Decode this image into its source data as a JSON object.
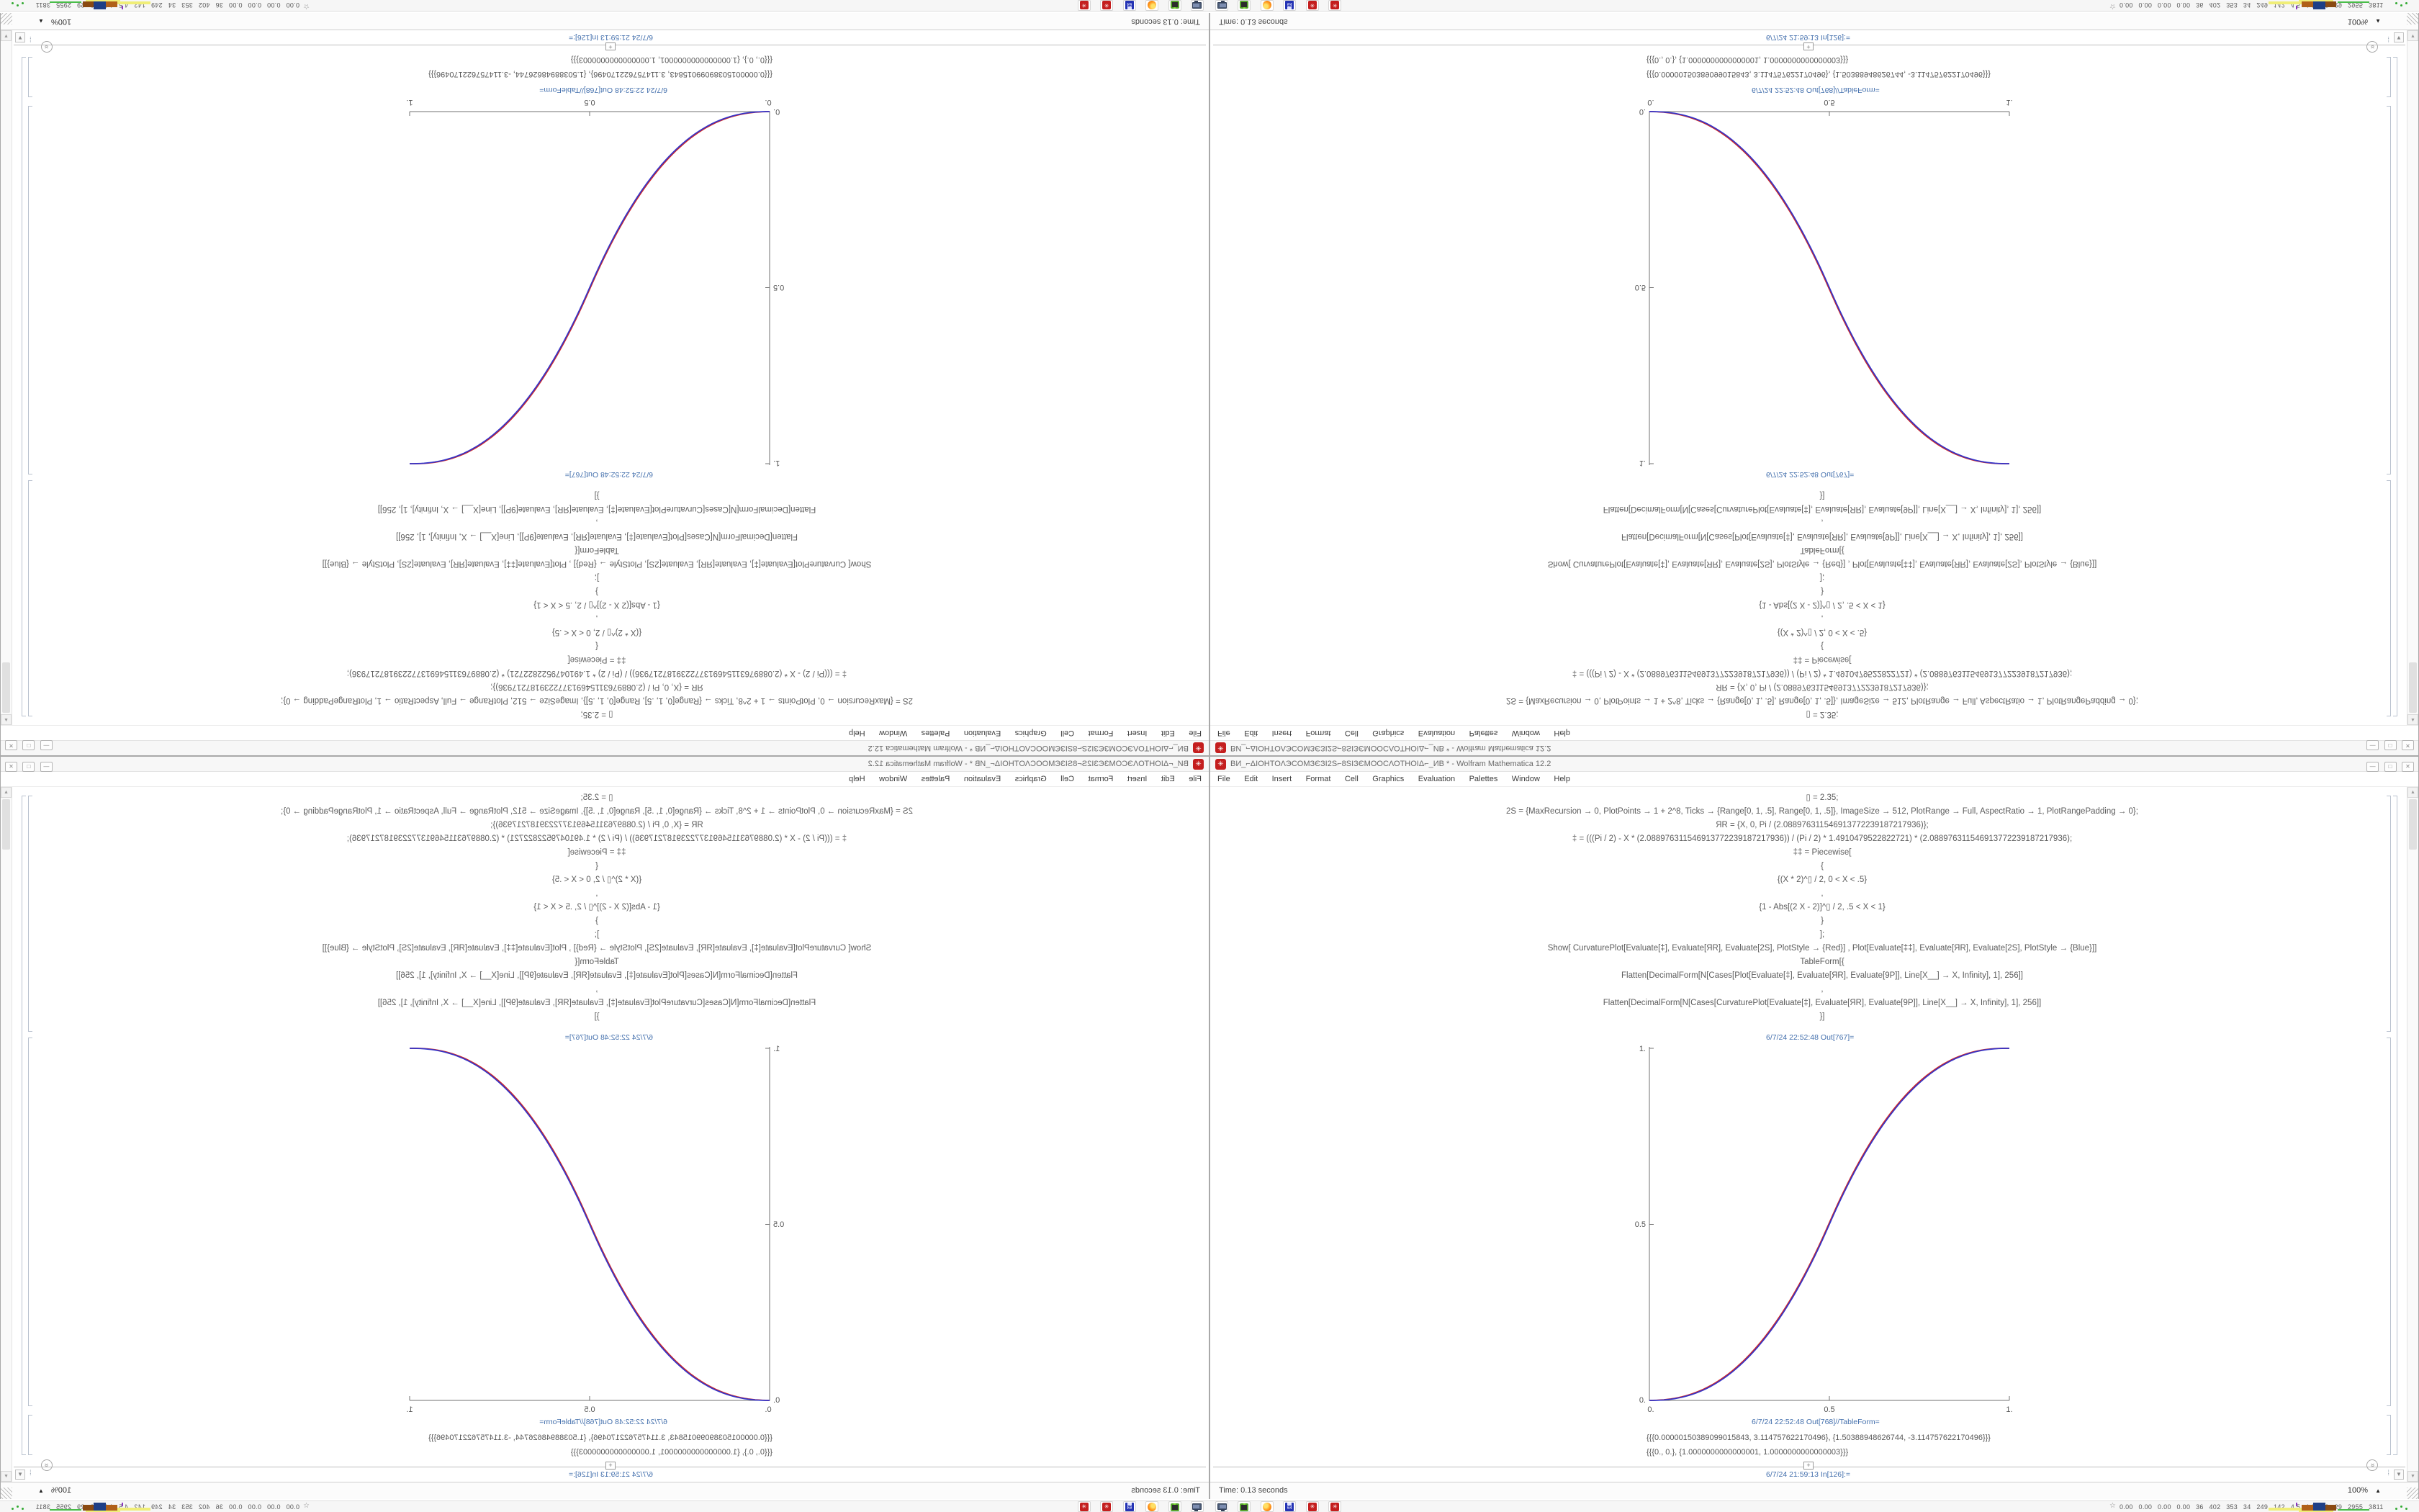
{
  "window": {
    "title": "ВИ_⌐ΔΙΟΗΤΟΛЭСΟΜЗЄЗΙ2Ѕ⌐8ЅΙЗЄΜΟΟСΛΟΤΗΟΙΔ⌐_ИВ * - Wolfram Mathematica 12.2",
    "app_icon_glyph": "✳",
    "buttons": {
      "minimize": "—",
      "maximize": "□",
      "close": "✕"
    },
    "menu": [
      "File",
      "Edit",
      "Insert",
      "Format",
      "Cell",
      "Graphics",
      "Evaluation",
      "Palettes",
      "Window",
      "Help"
    ]
  },
  "notebook": {
    "input_lines": [
      "▯ = 2.35;",
      "2S = {MaxRecursion → 0, PlotPoints → 1 + 2^8, Ticks → {Range[0, 1, .5], Range[0, 1, .5]}, ImageSize → 512, PlotRange → Full, AspectRatio → 1, PlotRangePadding → 0};",
      "ЯR = {X, 0, Pi / (2.088976311546913772239187217936)};",
      "‡ = (((Pi / 2) - X * (2.088976311546913772239187217936)) / (Pi / 2) * 1.4910479522822721) * (2.088976311546913772239187217936);",
      "‡‡ = Piecewise[",
      "{",
      "{(X * 2)^▯ / 2, 0 < X < .5}",
      ",",
      "{1 - Abs[(2 X - 2)]^▯ / 2, .5 < X < 1}",
      "}",
      "];",
      "Show[  CurvaturePlot[Evaluate[‡], Evaluate[ЯR], Evaluate[2S], PlotStyle → {Red}]  ,   Plot[Evaluate[‡‡], Evaluate[ЯR], Evaluate[2S],  PlotStyle → {Blue}]]",
      "TableForm[{",
      "Flatten[DecimalForm[N[Cases[Plot[Evaluate[‡], Evaluate[ЯR], Evaluate[9P]], Line[X__] → X, Infinity], 1], 256]]",
      ",",
      "Flatten[DecimalForm[N[Cases[CurvaturePlot[Evaluate[‡], Evaluate[ЯR], Evaluate[9P]], Line[X__] → X, Infinity], 1], 256]]",
      "}]"
    ],
    "out_plot_label": "6/7/24 22:52:48 Out[767]=",
    "out_table_label": "6/7/24 22:52:48 Out[768]//TableForm=",
    "table_rows": [
      "{{{0.00000150389099015843, 3.114757622170496}, {1.50388948626744, -3.114757622170496}}}",
      "{{{0., 0.}, {1.0000000000000001, 1.0000000000000003}}}"
    ],
    "in_label": "6/7/24 21:59:13 In[126]:=",
    "insert_plus": "+",
    "collapse_glyph": "»",
    "assist_dots": "⁞",
    "assist_drop": "▼"
  },
  "chart_data": {
    "type": "line",
    "title": "",
    "xlabel": "",
    "ylabel": "",
    "xlim": [
      0,
      1
    ],
    "ylim": [
      0,
      1
    ],
    "grid": false,
    "legend": "none (PlotStyle Red = CurvaturePlot[‡], Blue = Plot[‡‡])",
    "xticks": [
      "0.",
      "0.5",
      "1."
    ],
    "yticks": [
      "0.",
      "0.5",
      "1."
    ],
    "exponent": 2.35,
    "x": [
      0,
      0.1,
      0.2,
      0.3,
      0.4,
      0.5,
      0.6,
      0.7,
      0.8,
      0.9,
      1
    ],
    "series": [
      {
        "name": "CurvaturePlot ‡ (Red)",
        "color": "#d02828",
        "values": [
          0,
          0.0114,
          0.058,
          0.1505,
          0.296,
          0.5,
          0.704,
          0.8495,
          0.942,
          0.9886,
          1
        ]
      },
      {
        "name": "Plot ‡‡ (Blue)",
        "color": "#3434c8",
        "values": [
          0,
          0.0114,
          0.058,
          0.1505,
          0.296,
          0.5,
          0.704,
          0.8495,
          0.942,
          0.9886,
          1
        ]
      }
    ]
  },
  "statusbar": {
    "time_text": "Time: 0.13 seconds",
    "zoom_value": "100%",
    "zoom_arrow": "▲"
  },
  "scrollbar": {
    "up": "▲",
    "down": "▼"
  },
  "taskbar": {
    "icons": [
      "display-monitor",
      "emulator",
      "firefox",
      "floppy-64",
      "mathematica",
      "mathematica"
    ],
    "floppy_label": "64",
    "gear_glyph": "✳",
    "tray_star": "☆",
    "tray_values": [
      "0.00",
      "0.00",
      "0.00",
      "0.00",
      "36",
      "402",
      "353",
      "34",
      "249",
      "142",
      "4.5",
      "1.5",
      "33",
      "29",
      "2955",
      "3811"
    ],
    "tray_values_text": "0.00 0.00 0.00 0.00  36  402  353  34  249  142  4.5  1.5  33  29  2955 3811"
  },
  "colors": {
    "cell_label_blue": "#4470ad",
    "curve_red": "#d02828",
    "curve_blue": "#3434c8",
    "app_red": "#c41e1e",
    "axis_gray": "#707070"
  }
}
